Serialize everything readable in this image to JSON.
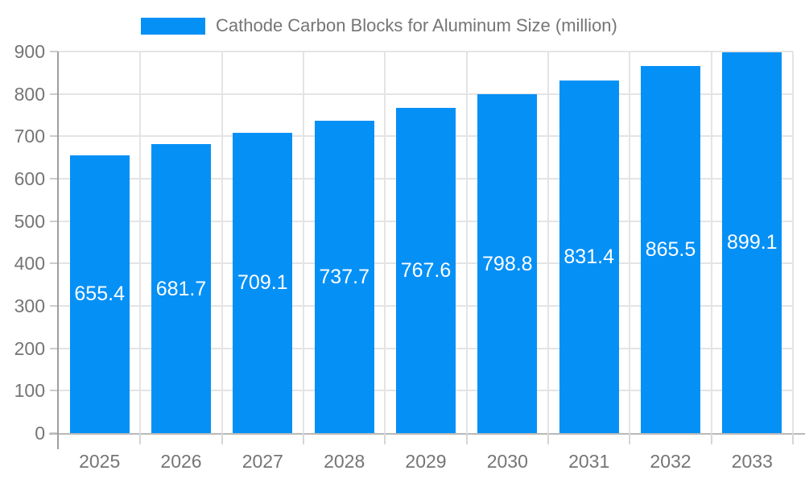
{
  "legend": {
    "label": "Cathode Carbon Blocks for Aluminum Size (million)"
  },
  "chart_data": {
    "type": "bar",
    "title": "Cathode Carbon Blocks for Aluminum Size (million)",
    "categories": [
      "2025",
      "2026",
      "2027",
      "2028",
      "2029",
      "2030",
      "2031",
      "2032",
      "2033"
    ],
    "values": [
      655.4,
      681.7,
      709.1,
      737.7,
      767.6,
      798.8,
      831.4,
      865.5,
      899.1
    ],
    "series": [
      {
        "name": "Cathode Carbon Blocks for Aluminum Size (million)",
        "values": [
          655.4,
          681.7,
          709.1,
          737.7,
          767.6,
          798.8,
          831.4,
          865.5,
          899.1
        ]
      }
    ],
    "xlabel": "",
    "ylabel": "",
    "ylim": [
      0,
      900
    ],
    "yticks": [
      0,
      100,
      200,
      300,
      400,
      500,
      600,
      700,
      800,
      900
    ],
    "grid": true,
    "legend_position": "top",
    "bar_labels_visible": true,
    "colors": {
      "bar": "#0590f6",
      "bar_label": "#ffffff",
      "axis_text": "#757575",
      "legend_text": "#757575",
      "grid_line": "#e4e4e4",
      "split_line": "#e4e4e4",
      "y_axis_line": "#9e9e9e",
      "x_axis_line": "#b9b9b9",
      "y_tick": "#cccccc",
      "x_tick": "#d6d6d6",
      "background": "#ffffff"
    }
  }
}
